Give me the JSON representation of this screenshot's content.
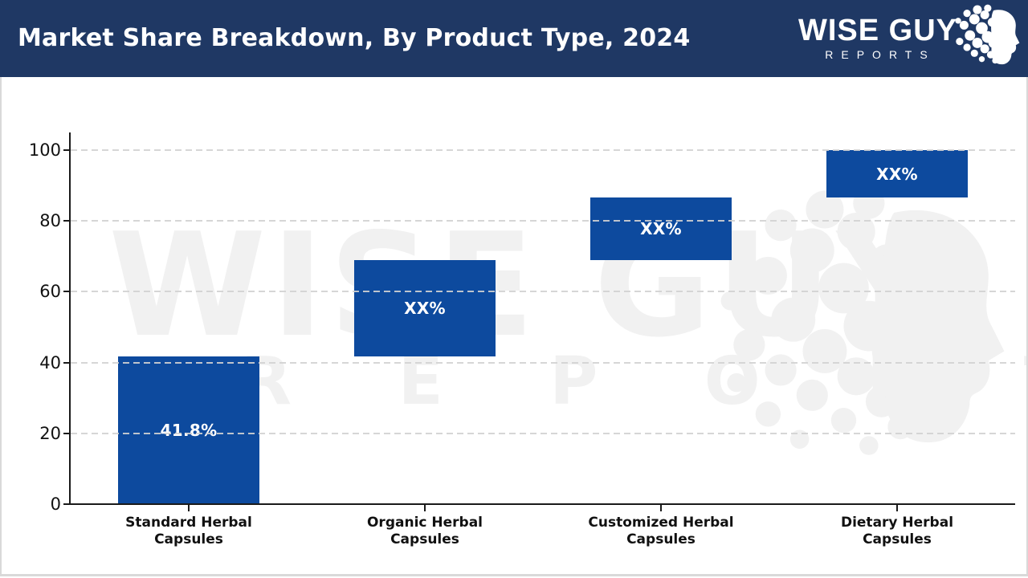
{
  "header": {
    "title": "Market Share Breakdown, By Product Type, 2024"
  },
  "logo": {
    "name": "WISE GUY",
    "sub": "REPORTS"
  },
  "watermark": {
    "line1": "WISE GUY",
    "line2": "R E P O R T S"
  },
  "colors": {
    "header_bg": "#1F3864",
    "bar_blue": "#0D4A9E",
    "grid": "#d2d2d2",
    "axis": "#1a1a1a",
    "watermark": "#f1f1f1",
    "bar_label": "#ffffff"
  },
  "chart_data": {
    "type": "bar",
    "subtype": "waterfall",
    "title": "Market Share Breakdown, By Product Type, 2024",
    "xlabel": "",
    "ylabel": "",
    "categories": [
      "Standard Herbal Capsules",
      "Organic Herbal Capsules",
      "Customized Herbal Capsules",
      "Dietary Herbal Capsules"
    ],
    "bars": [
      {
        "category": "Standard Herbal Capsules",
        "start": 0,
        "end": 41.8,
        "label": "41.8%"
      },
      {
        "category": "Organic Herbal Capsules",
        "start": 41.8,
        "end": 69.0,
        "label": "XX%"
      },
      {
        "category": "Customized Herbal Capsules",
        "start": 69.0,
        "end": 86.6,
        "label": "XX%"
      },
      {
        "category": "Dietary Herbal Capsules",
        "start": 86.6,
        "end": 100,
        "label": "XX%"
      }
    ],
    "ylim": [
      0,
      104
    ],
    "yticks": [
      0,
      20,
      40,
      60,
      80,
      100
    ],
    "grid": "horizontal-dashed",
    "legend": "none",
    "bar_color": "#0D4A9E"
  }
}
